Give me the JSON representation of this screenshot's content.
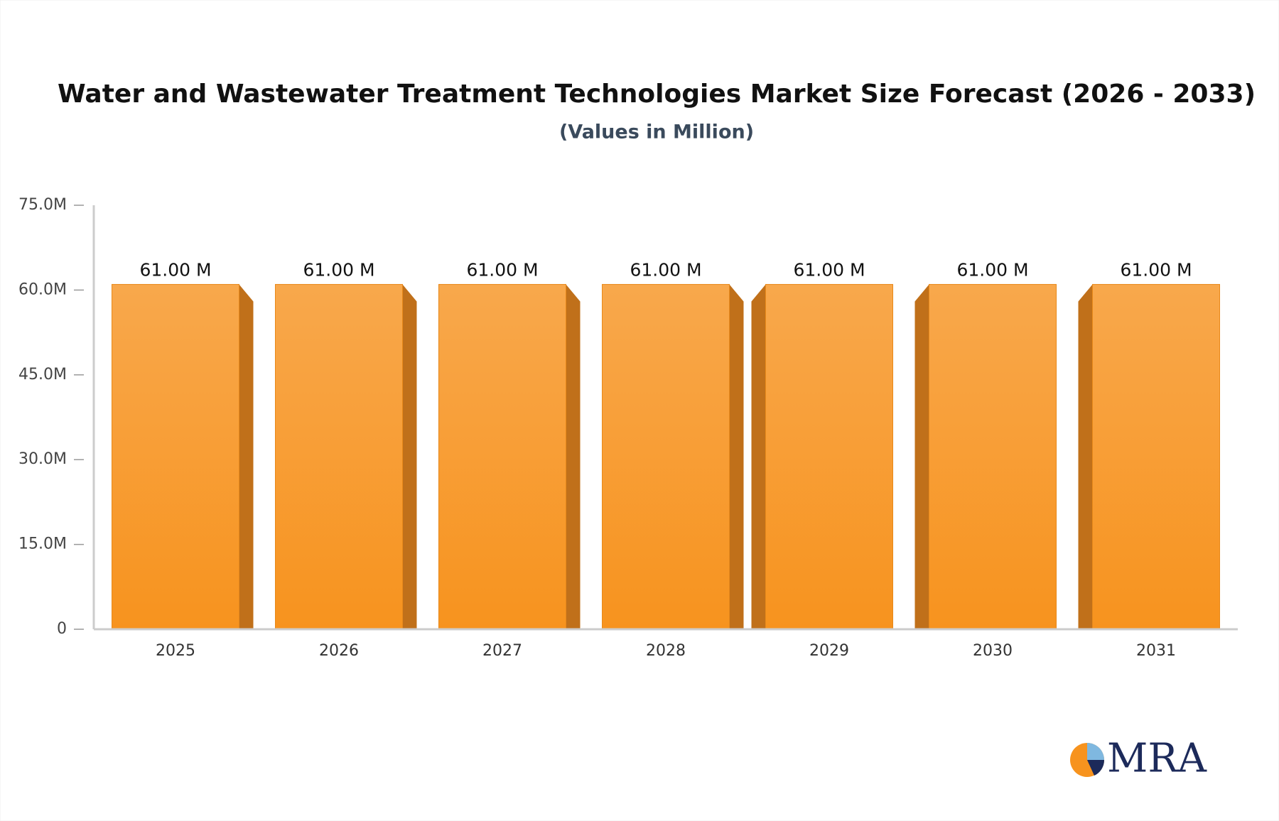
{
  "chart_data": {
    "type": "bar",
    "title": "Water and Wastewater Treatment Technologies Market Size Forecast (2026 - 2033)",
    "subtitle": "(Values in Million)",
    "categories": [
      "2025",
      "2026",
      "2027",
      "2028",
      "2029",
      "2030",
      "2031"
    ],
    "values": [
      61,
      61,
      61,
      61,
      61,
      61,
      61
    ],
    "value_labels": [
      "61.00 M",
      "61.00 M",
      "61.00 M",
      "61.00 M",
      "61.00 M",
      "61.00 M",
      "61.00 M"
    ],
    "color": "#f7931e",
    "ylim": [
      0,
      75
    ],
    "yticks": [
      0,
      {
        "value": 15,
        "label": "15.0M"
      },
      {
        "value": 30,
        "label": "30.0M"
      },
      {
        "value": 45,
        "label": "45.0M"
      },
      {
        "value": 60,
        "label": "60.0M"
      },
      {
        "value": 75,
        "label": "75.0M"
      }
    ],
    "grid": false
  },
  "logo": "MRA"
}
